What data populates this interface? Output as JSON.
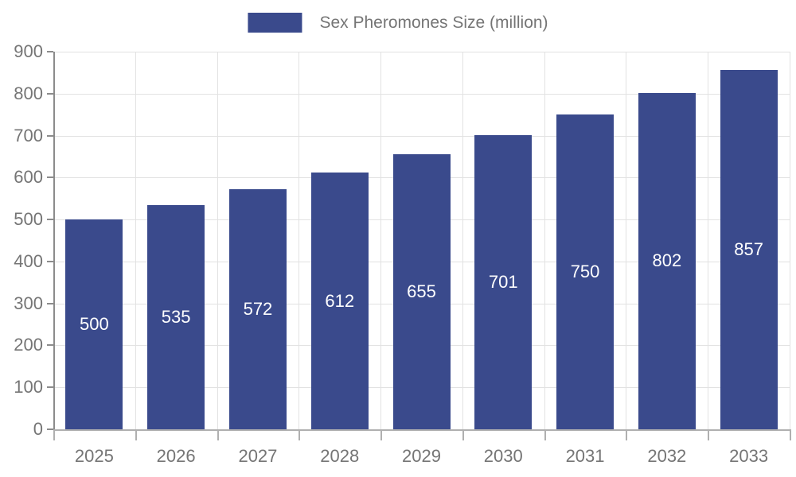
{
  "legend": {
    "label": "Sex Pheromones Size (million)"
  },
  "chart_data": {
    "type": "bar",
    "title": "Sex Pheromones Size (million)",
    "categories": [
      "2025",
      "2026",
      "2027",
      "2028",
      "2029",
      "2030",
      "2031",
      "2032",
      "2033"
    ],
    "values": [
      500,
      535,
      572,
      612,
      655,
      701,
      750,
      802,
      857
    ],
    "xlabel": "",
    "ylabel": "",
    "ylim": [
      0,
      900
    ],
    "ytick_interval": 100,
    "ytick_labels": [
      "0",
      "100",
      "200",
      "300",
      "400",
      "500",
      "600",
      "700",
      "800",
      "900"
    ],
    "grid": true,
    "legend_position": "top-center",
    "colors": {
      "bar": "#3A4A8C",
      "bar_value_text": "#ffffff",
      "axis_text": "#757575",
      "gridline": "#e2e2e2",
      "y_axis_line": "#8c8c8c",
      "x_axis_line": "#b0b0b0"
    }
  }
}
